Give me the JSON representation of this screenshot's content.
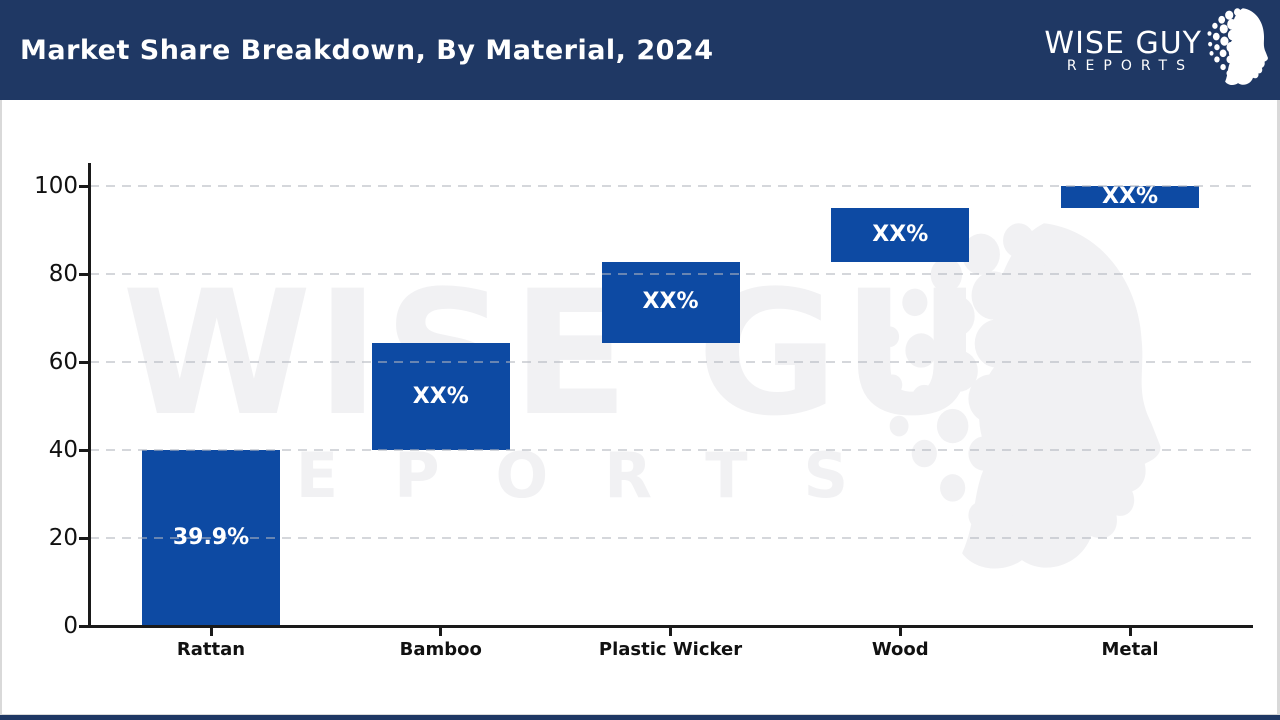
{
  "header": {
    "title": "Market Share Breakdown, By Material, 2024",
    "logo": {
      "line1": "WISE GUY",
      "line2": "REPORTS"
    }
  },
  "watermark": {
    "line1": "WISE GUY",
    "line2": "REPORTS"
  },
  "colors": {
    "header_bg": "#1f3864",
    "bar": "#0d4aa3",
    "watermark": "#f1f1f3",
    "grid": "#b2b6be",
    "axis": "#1a1a1a",
    "value_label": "#ffffff"
  },
  "chart_data": {
    "type": "waterfall",
    "title": "Market Share Breakdown, By Material, 2024",
    "categories": [
      "Rattan",
      "Bamboo",
      "Plastic Wicker",
      "Wood",
      "Metal"
    ],
    "segments": [
      {
        "category": "Rattan",
        "start": 0,
        "end": 39.9,
        "label": "39.9%"
      },
      {
        "category": "Bamboo",
        "start": 39.9,
        "end": 64.4,
        "label": "XX%"
      },
      {
        "category": "Plastic Wicker",
        "start": 64.4,
        "end": 82.7,
        "label": "XX%"
      },
      {
        "category": "Wood",
        "start": 82.7,
        "end": 95.0,
        "label": "XX%"
      },
      {
        "category": "Metal",
        "start": 95.0,
        "end": 100.0,
        "label": "XX%"
      }
    ],
    "y_ticks": [
      0,
      20,
      40,
      60,
      80,
      100
    ],
    "ylim": [
      0,
      105
    ],
    "xlabel": "",
    "ylabel": "",
    "grid": "horizontal-dashed",
    "legend": "none",
    "bar_color": "#0d4aa3"
  }
}
